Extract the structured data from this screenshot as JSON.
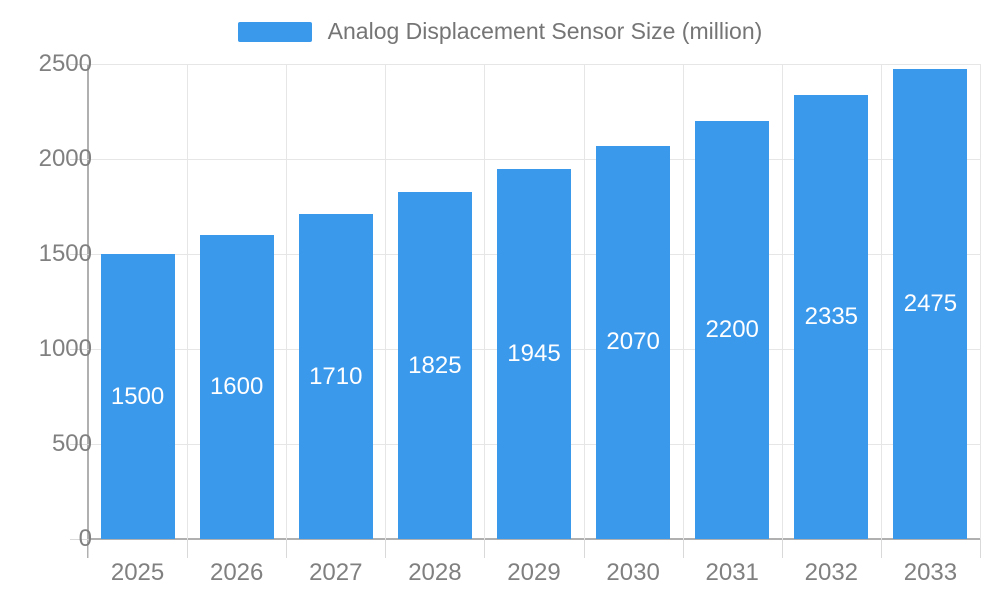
{
  "colors": {
    "bar": "#3B99EC",
    "grid": "#e6e6e6",
    "axis": "#b0b0b0",
    "tick": "#d9d9d9",
    "axis_text": "#808080",
    "legend_text": "#757575",
    "value_label": "#ffffff",
    "background": "#ffffff"
  },
  "chart_data": {
    "type": "bar",
    "title": "Analog Displacement Sensor Size (million)",
    "legend": {
      "label": "Analog Displacement Sensor Size (million)",
      "position": "top-center"
    },
    "categories": [
      "2025",
      "2026",
      "2027",
      "2028",
      "2029",
      "2030",
      "2031",
      "2032",
      "2033"
    ],
    "values": [
      1500,
      1600,
      1710,
      1825,
      1945,
      2070,
      2200,
      2335,
      2475
    ],
    "xlabel": "",
    "ylabel": "",
    "ylim": [
      0,
      2500
    ],
    "yticks": [
      0,
      500,
      1000,
      1500,
      2000,
      2500
    ],
    "grid": true,
    "bar_color": "#3B99EC",
    "value_labels": "inside-center",
    "value_label_color": "#ffffff"
  }
}
